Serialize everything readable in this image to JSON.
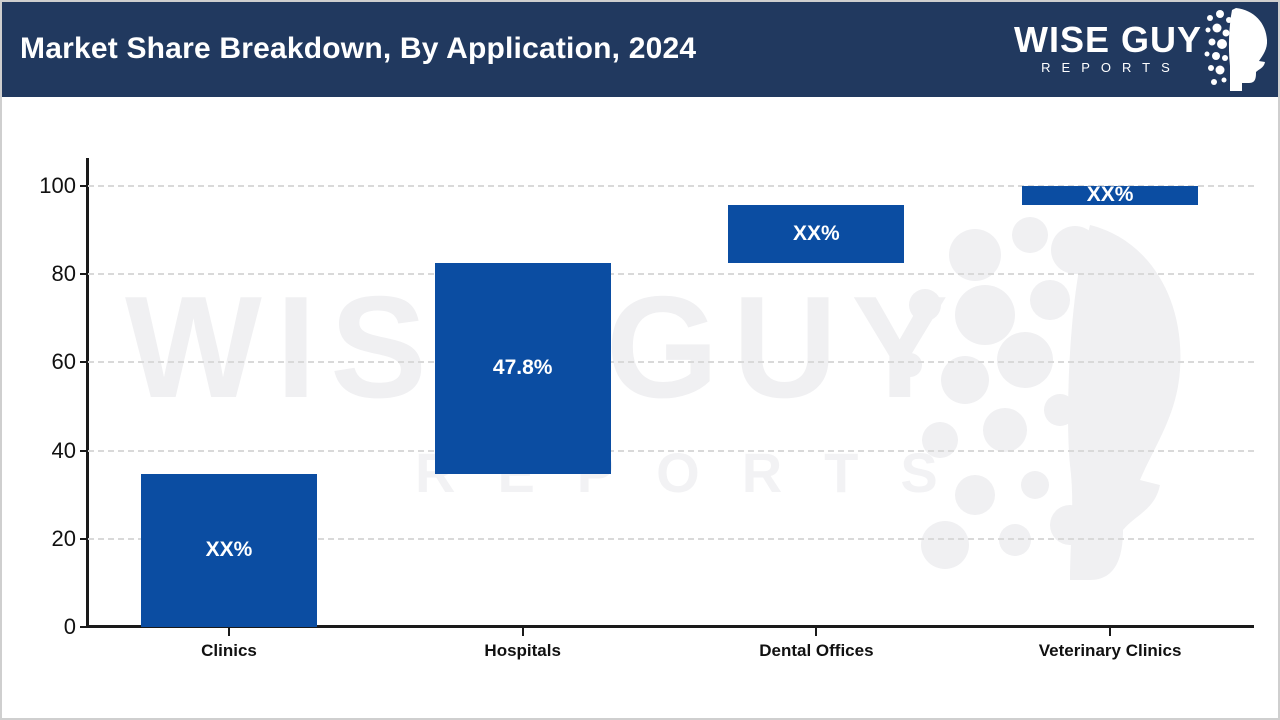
{
  "header": {
    "title": "Market Share Breakdown, By Application, 2024",
    "bg_color": "#21395f",
    "logo": {
      "line1": "WISE GUY",
      "line2": "REPORTS"
    }
  },
  "watermark": {
    "line1": "WISE GUY",
    "line2": "REPORTS"
  },
  "chart_data": {
    "type": "bar",
    "subtype": "waterfall",
    "title": "Market Share Breakdown, By Application, 2024",
    "categories": [
      "Clinics",
      "Hospitals",
      "Dental Offices",
      "Veterinary Clinics"
    ],
    "series": [
      {
        "name": "Market Share %",
        "starts": [
          0,
          34.8,
          82.6,
          95.7
        ],
        "ends": [
          34.8,
          82.6,
          95.7,
          100
        ]
      }
    ],
    "bar_labels": [
      "XX%",
      "47.8%",
      "XX%",
      "XX%"
    ],
    "xlabel": "",
    "ylabel": "",
    "yticks": [
      0,
      20,
      40,
      60,
      80,
      100
    ],
    "ylim": [
      0,
      106
    ],
    "grid": "horizontal-dashed",
    "legend": "none",
    "bar_color": "#0b4da2",
    "label_color": "#ffffff"
  }
}
